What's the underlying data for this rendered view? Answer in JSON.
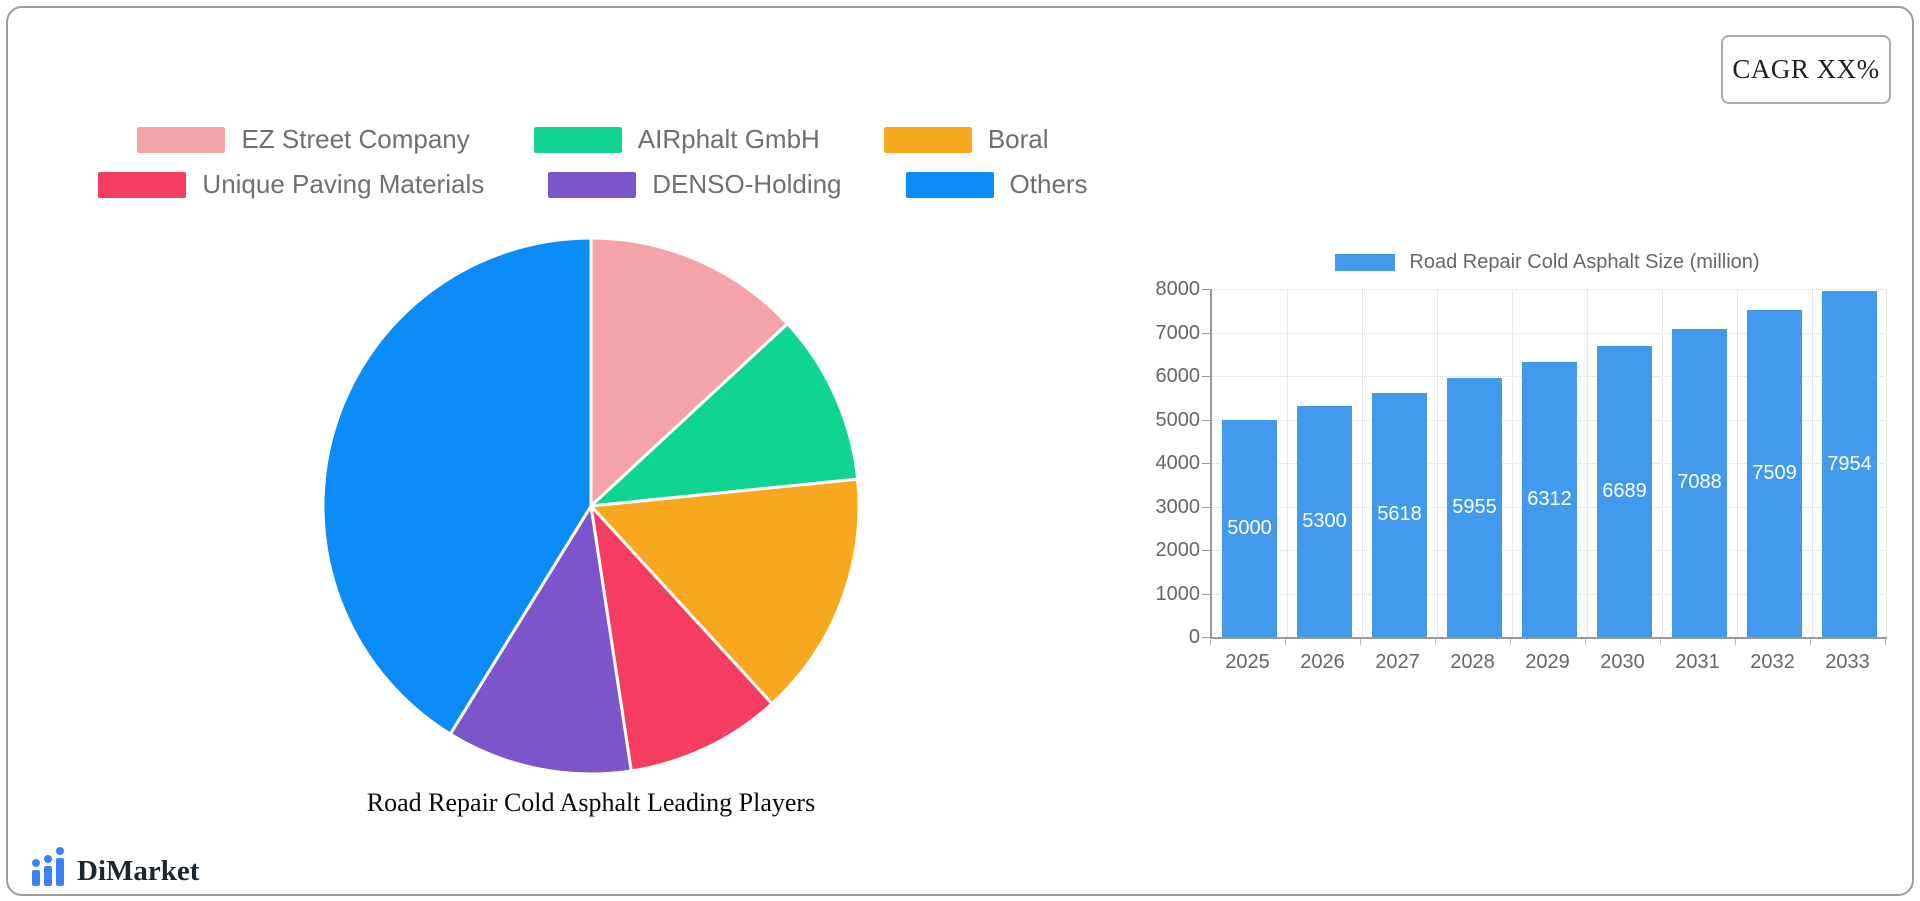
{
  "cagr_label": "CAGR XX%",
  "watermark": {
    "brand": "DiMarket",
    "icon": "mini-bar-chart-icon",
    "icon_color": "#3b82f6",
    "text_color": "#1c2633"
  },
  "chart_data": [
    {
      "type": "pie",
      "title": "Road Repair Cold Asphalt Leading Players",
      "labels": [
        "EZ Street Company",
        "AIRphalt GmbH",
        "Boral",
        "Unique Paving Materials",
        "DENSO-Holding",
        "Others"
      ],
      "values": [
        13.1,
        10.3,
        14.8,
        9.4,
        11.2,
        41.2
      ],
      "colors": [
        "#F5A2A8",
        "#10D592",
        "#F8A81E",
        "#F43D61",
        "#7D55CB",
        "#0B8BF5"
      ],
      "start_angle_deg_from_top": 0,
      "direction": "clockwise",
      "slice_gap_color": "#ffffff",
      "legend_position": "top",
      "legend_row_break": 3
    },
    {
      "type": "bar",
      "legend": "Road Repair Cold Asphalt Size (million)",
      "categories": [
        "2025",
        "2026",
        "2027",
        "2028",
        "2029",
        "2030",
        "2031",
        "2032",
        "2033"
      ],
      "values": [
        5000,
        5300,
        5618,
        5955,
        6312,
        6689,
        7088,
        7509,
        7954
      ],
      "bar_color": "#419AEC",
      "value_label_color": "#ffffff",
      "ylim": [
        0,
        8000
      ],
      "ytick_step": 1000,
      "grid": true,
      "legend_position": "top"
    }
  ]
}
